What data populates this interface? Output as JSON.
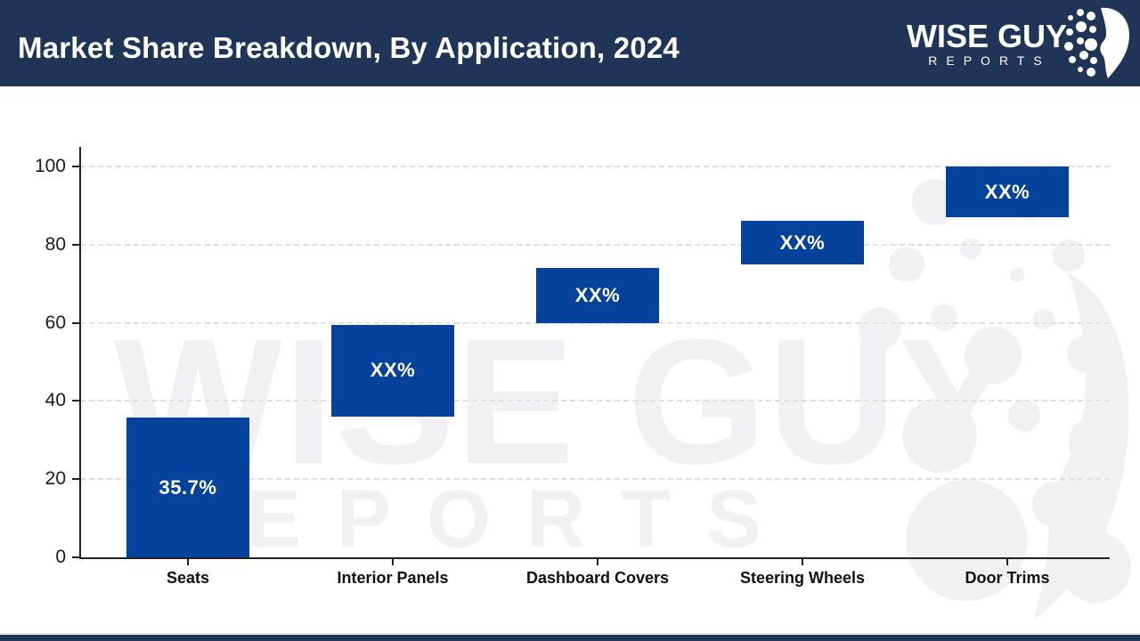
{
  "header": {
    "title": "Market Share Breakdown, By Application, 2024",
    "logo": {
      "line1": "WISE GUY",
      "line2": "REPORTS"
    }
  },
  "watermark": {
    "line1": "WISE GUY",
    "line2": "REPORTS"
  },
  "colors": {
    "header_bg": "#1F3456",
    "bar": "#05429B",
    "grid": "#E0E0E0",
    "axis_text": "#1A1A1A",
    "bar_label_text": "#FFFFFF",
    "watermark": "#F1F1F3"
  },
  "chart_data": {
    "type": "bar",
    "subtype": "waterfall",
    "title": "Market Share Breakdown, By Application, 2024",
    "xlabel": "",
    "ylabel": "",
    "ylim": [
      0,
      105
    ],
    "yticks": [
      0,
      20,
      40,
      60,
      80,
      100
    ],
    "grid": "horizontal-dashed",
    "legend": "none",
    "categories": [
      "Seats",
      "Interior Panels",
      "Dashboard Covers",
      "Steering Wheels",
      "Door Trims"
    ],
    "bars": [
      {
        "category": "Seats",
        "start": 0,
        "end": 35.7,
        "label": "35.7%"
      },
      {
        "category": "Interior Panels",
        "start": 36,
        "end": 59.5,
        "label": "XX%"
      },
      {
        "category": "Dashboard Covers",
        "start": 60,
        "end": 74,
        "label": "XX%"
      },
      {
        "category": "Steering Wheels",
        "start": 75,
        "end": 86,
        "label": "XX%"
      },
      {
        "category": "Door Trims",
        "start": 87,
        "end": 100,
        "label": "XX%"
      }
    ]
  }
}
